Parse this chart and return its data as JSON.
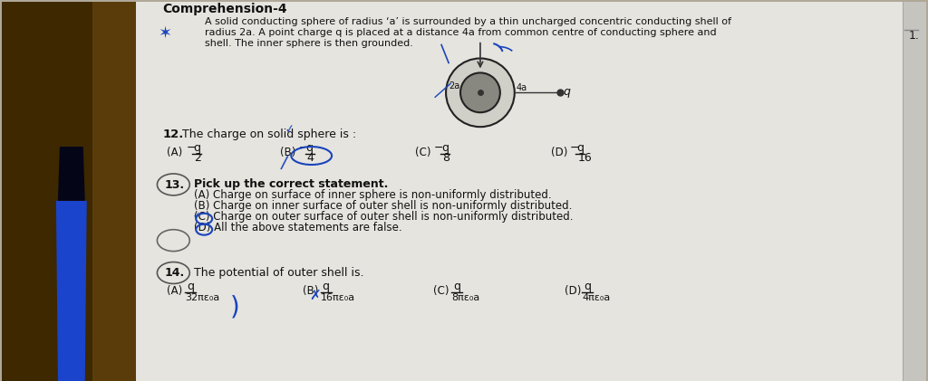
{
  "bg_left_color": "#4a3008",
  "bg_paper_color": "#e8e7e2",
  "bg_right_color": "#d0cfca",
  "pen_blue": "#1a44bb",
  "pen_dark": "#0a0a22",
  "title": "Comprehension-4",
  "problem_line1": "A solid conducting sphere of radius ‘a’ is surrounded by a thin uncharged concentric conducting shell of",
  "problem_line2": "radius 2a. A point charge q is placed at a distance 4a from common centre of conducting sphere and",
  "problem_line3": "shell. The inner sphere is then grounded.",
  "q12_num": "12.",
  "q12_text": "The charge on solid sphere is :",
  "q13_num": "13.",
  "q13_text": "Pick up the correct statement.",
  "q13_A": "(A) Charge on surface of inner sphere is non-uniformly distributed.",
  "q13_B": "(B) Charge on inner surface of outer shell is non-uniformly distributed.",
  "q13_C": "(C) Charge on outer surface of outer shell is non-uniformly distributed.",
  "q13_D": "(D) All the above statements are false.",
  "q14_num": "14.",
  "q14_text": "The potential of outer shell is.",
  "text_color": "#111111",
  "line_color": "#222222"
}
